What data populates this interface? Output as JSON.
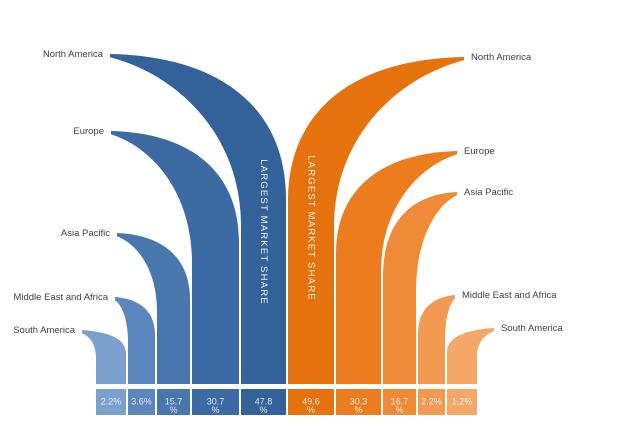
{
  "title": "",
  "text_colors": {
    "region_label": "#3F3F3F",
    "value_label": "#F2F6FA",
    "band_label": "#FFFFFF"
  },
  "chart_data": {
    "type": "bar",
    "variant": "mirrored-swoosh-funnel",
    "grid": false,
    "legend_position": "none",
    "axis": "none",
    "center_band_labels": {
      "left": "LARGEST MARKET SHARE",
      "right": "LARGEST MARKET SHARE"
    },
    "sides": [
      {
        "side": "left",
        "palette": [
          "#33619A",
          "#3C6BA3",
          "#4877AE",
          "#5C87BC",
          "#7CA0CD"
        ],
        "regions": [
          {
            "label": "North America",
            "value": 47.8,
            "value_display": "47.8 %"
          },
          {
            "label": "Europe",
            "value": 30.7,
            "value_display": "30.7 %"
          },
          {
            "label": "Asia Pacific",
            "value": 15.7,
            "value_display": "15.7 %"
          },
          {
            "label": "Middle East and Africa",
            "value": 3.6,
            "value_display": "3.6%"
          },
          {
            "label": "South America",
            "value": 2.2,
            "value_display": "2.2%"
          }
        ]
      },
      {
        "side": "right",
        "palette": [
          "#E5720D",
          "#EB7D1E",
          "#EF8A36",
          "#F29A52",
          "#F4A767"
        ],
        "regions": [
          {
            "label": "North America",
            "value": 49.6,
            "value_display": "49.6 %"
          },
          {
            "label": "Europe",
            "value": 30.3,
            "value_display": "30.3 %"
          },
          {
            "label": "Asia Pacific",
            "value": 16.7,
            "value_display": "16.7 %"
          },
          {
            "label": "Middle East and Africa",
            "value": 2.2,
            "value_display": "2.2%"
          },
          {
            "label": "South America",
            "value": 1.2,
            "value_display": "1.2%"
          }
        ]
      }
    ],
    "bottom_value_cells": [
      {
        "line1": "2.2%",
        "line2": ""
      },
      {
        "line1": "3.6%",
        "line2": ""
      },
      {
        "line1": "15.7",
        "line2": "%"
      },
      {
        "line1": "30.7",
        "line2": "%"
      },
      {
        "line1": "47.8",
        "line2": "%"
      },
      {
        "line1": "49.6",
        "line2": "%"
      },
      {
        "line1": "30.3",
        "line2": "%"
      },
      {
        "line1": "16.7",
        "line2": "%"
      },
      {
        "line1": "2.2%",
        "line2": ""
      },
      {
        "line1": "1.2%",
        "line2": ""
      }
    ]
  }
}
